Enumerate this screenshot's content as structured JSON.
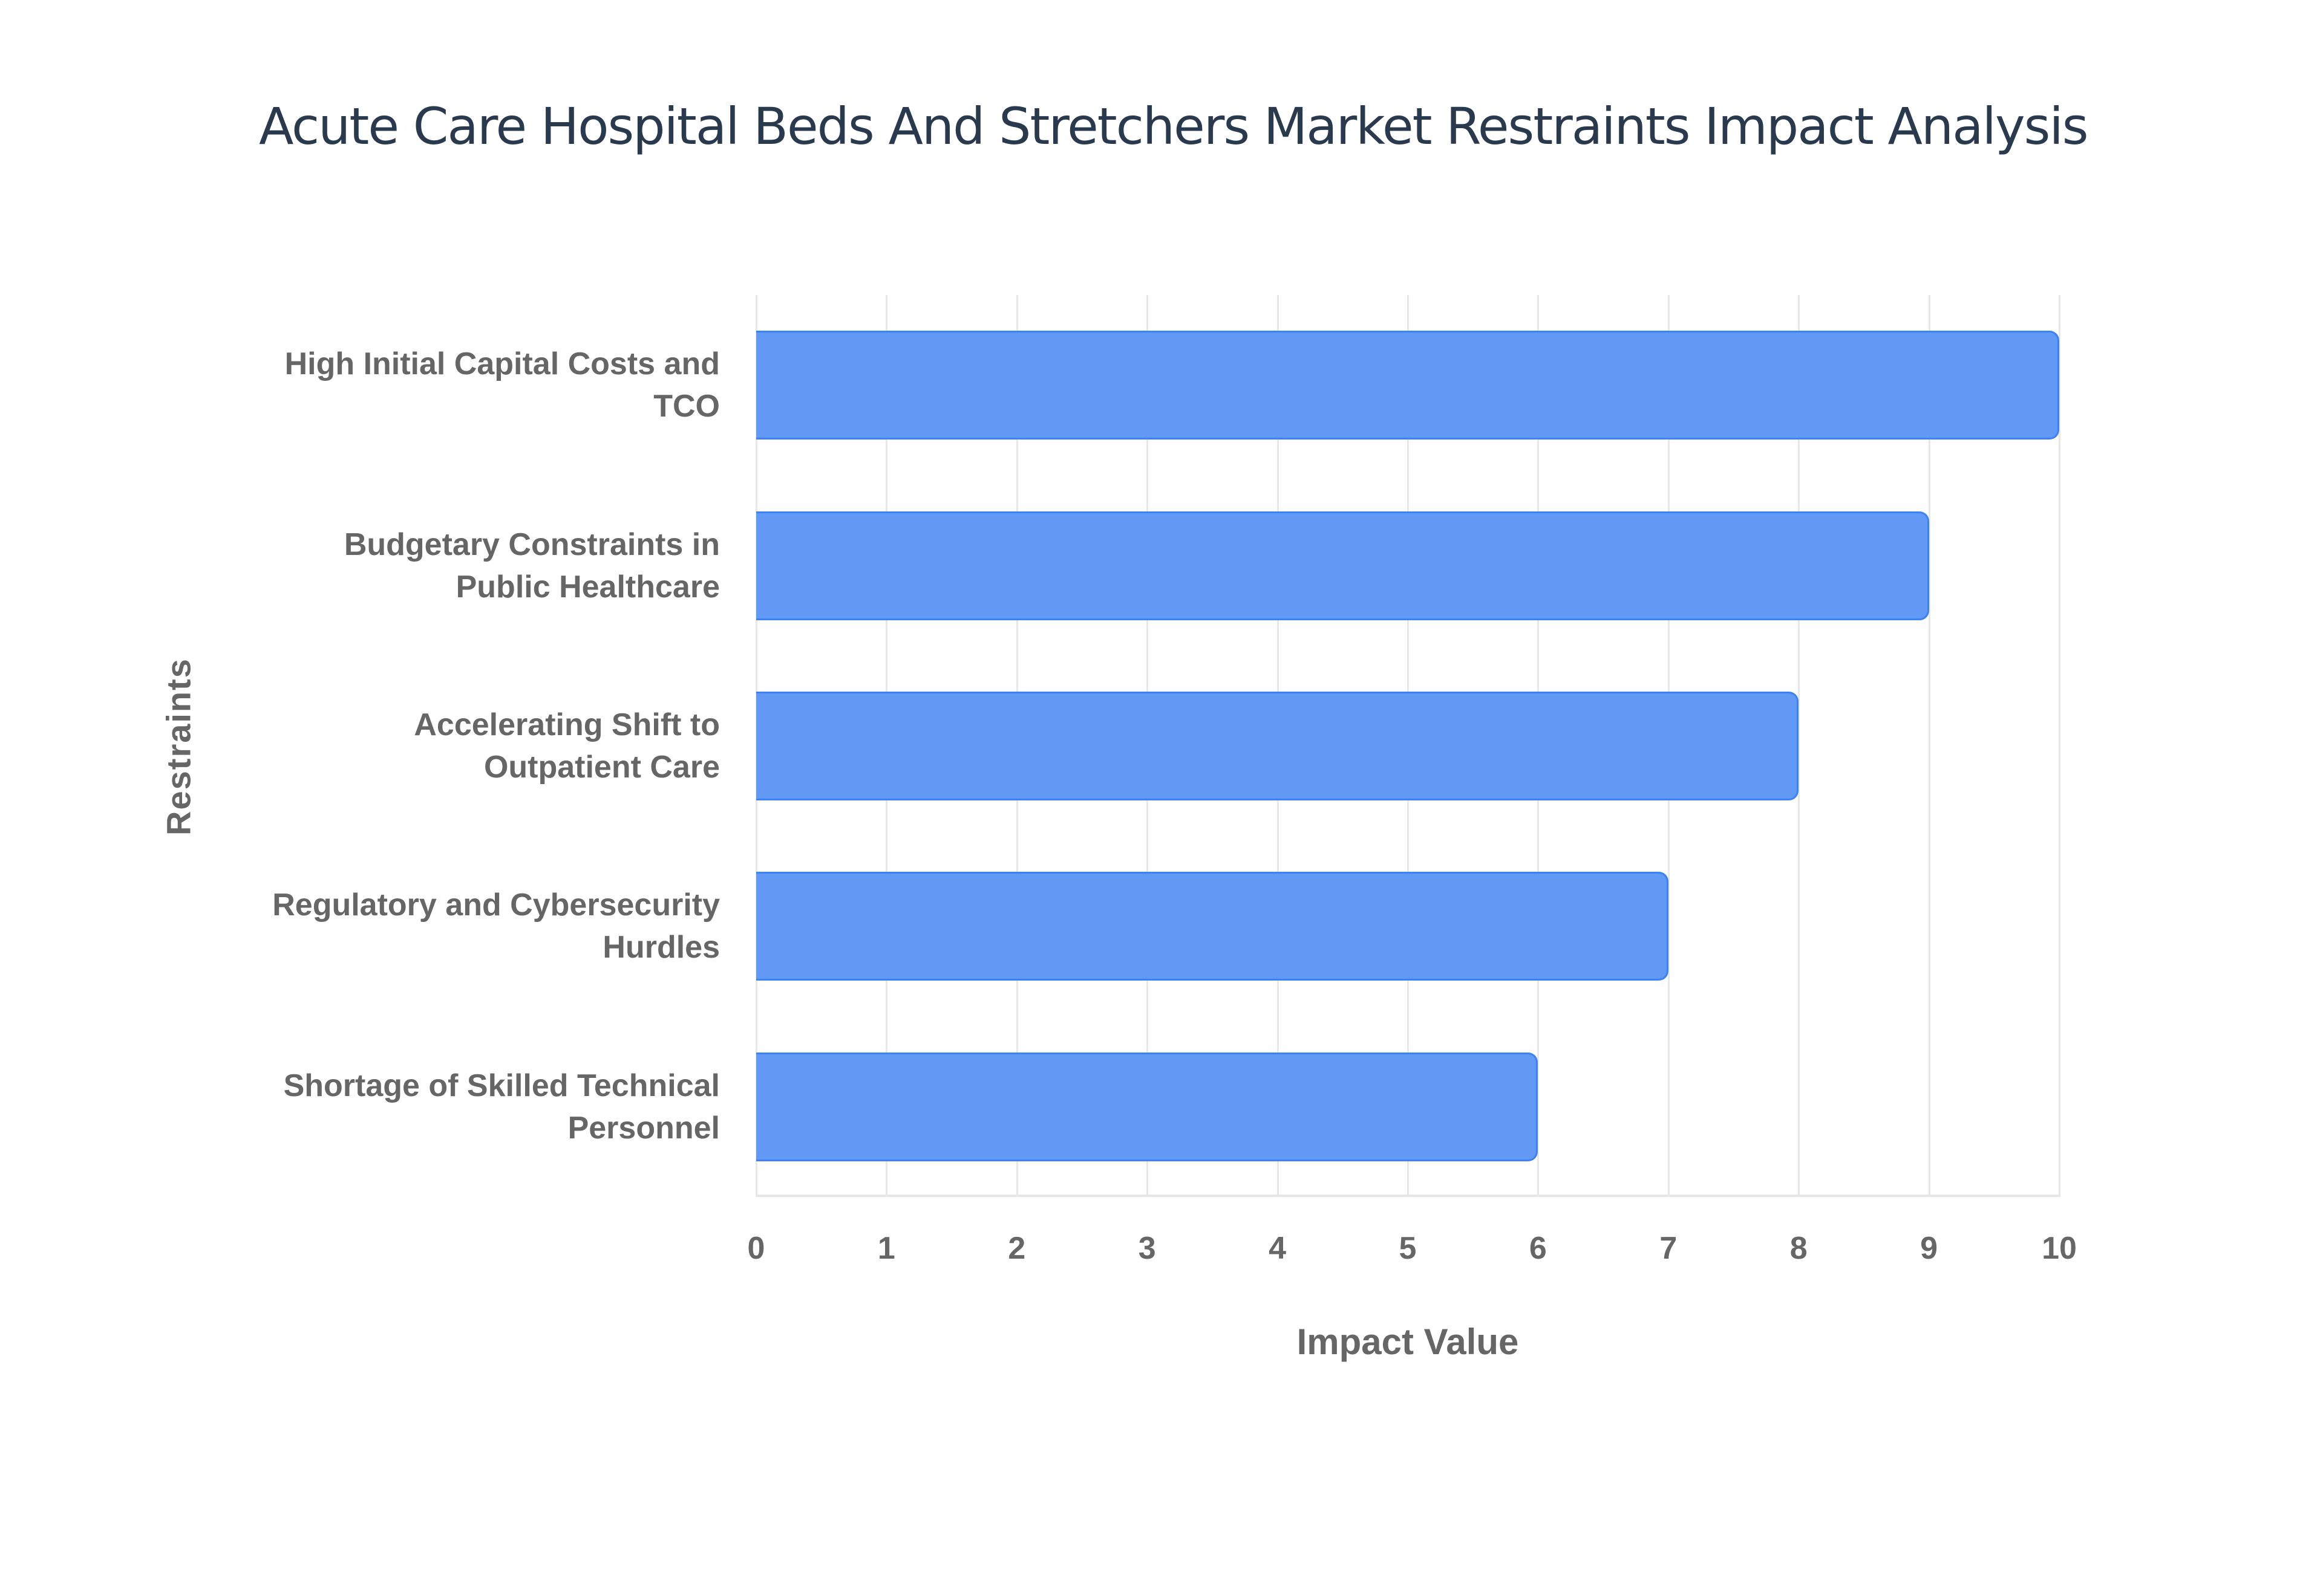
{
  "title": "Acute Care Hospital Beds And Stretchers Market Restraints Impact Analysis",
  "chart_data": {
    "type": "bar",
    "orientation": "horizontal",
    "title": "Acute Care Hospital Beds And Stretchers Market Restraints Impact Analysis",
    "xlabel": "Impact Value",
    "ylabel": "Restraints",
    "categories": [
      "High Initial Capital Costs and TCO",
      "Budgetary Constraints in Public Healthcare",
      "Accelerating Shift to Outpatient Care",
      "Regulatory and Cybersecurity Hurdles",
      "Shortage of Skilled Technical Personnel"
    ],
    "values": [
      10,
      9,
      8,
      7,
      6
    ],
    "xlim": [
      0,
      10
    ],
    "x_ticks": [
      "0",
      "1",
      "2",
      "3",
      "4",
      "5",
      "6",
      "7",
      "8",
      "9",
      "10"
    ],
    "grid": true,
    "legend": false,
    "bar_color": "#6199F4",
    "bar_border_color": "#3B82F6"
  },
  "labels": [
    {
      "line1": "High Initial Capital Costs and",
      "line2": "TCO"
    },
    {
      "line1": "Budgetary Constraints in",
      "line2": "Public Healthcare"
    },
    {
      "line1": "Accelerating Shift to",
      "line2": "Outpatient Care"
    },
    {
      "line1": "Regulatory and Cybersecurity",
      "line2": "Hurdles"
    },
    {
      "line1": "Shortage of Skilled Technical",
      "line2": "Personnel"
    }
  ]
}
